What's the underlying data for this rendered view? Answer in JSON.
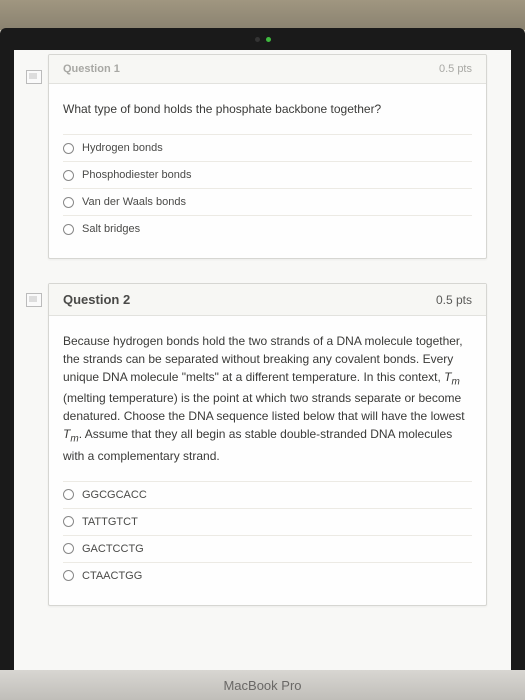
{
  "q1": {
    "title": "Question 1",
    "pts": "0.5 pts",
    "prompt": "What type of bond holds the phosphate backbone together?",
    "options": [
      "Hydrogen bonds",
      "Phosphodiester bonds",
      "Van der Waals bonds",
      "Salt bridges"
    ]
  },
  "q2": {
    "title": "Question 2",
    "pts": "0.5 pts",
    "prompt_parts": {
      "p1": "Because hydrogen bonds hold the two strands of a DNA molecule together, the strands can be separated without breaking any covalent bonds. Every unique DNA molecule \"melts\" at a different temperature. In this context, ",
      "tm1": "T",
      "tm1sub": "m",
      "p2": " (melting temperature) is the point at which two strands separate or become denatured. Choose the DNA sequence listed below that will have the lowest ",
      "tm2": "T",
      "tm2sub": "m",
      "p3": ". Assume that they all begin as stable double-stranded DNA molecules with a complementary strand."
    },
    "options": [
      "GGCGCACC",
      "TATTGTCT",
      "GACTCCTG",
      "CTAACTGG"
    ]
  },
  "footer": "MacBook Pro"
}
